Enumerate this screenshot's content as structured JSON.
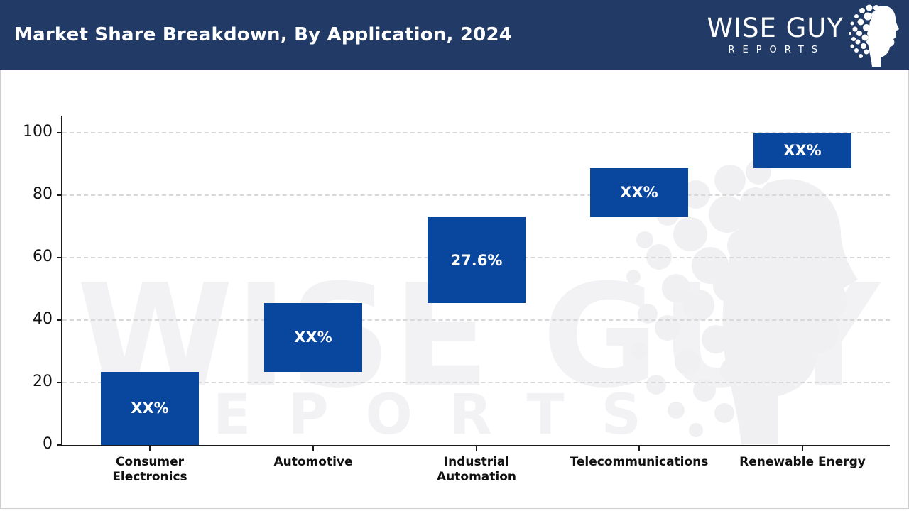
{
  "header": {
    "title": "Market Share Breakdown, By Application, 2024",
    "logo": {
      "line1": "WISE GUY",
      "line2": "REPORTS"
    }
  },
  "watermark": {
    "line1": "WISE GUY",
    "line2": "REPORTS"
  },
  "colors": {
    "header_bg": "#213a66",
    "bar": "#09479e",
    "grid": "#d8d8d8",
    "axis": "#1a1a1a",
    "watermark": "#f2f2f4",
    "bar_label": "#ffffff"
  },
  "chart_data": {
    "type": "bar",
    "subtype": "floating-waterfall",
    "title": "Market Share Breakdown, By Application, 2024",
    "categories": [
      "Consumer Electronics",
      "Automotive",
      "Industrial Automation",
      "Telecommunications",
      "Renewable Energy"
    ],
    "tick_lines": [
      "Consumer\nElectronics",
      "Automotive",
      "Industrial\nAutomation",
      "Telecommunications",
      "Renewable Energy"
    ],
    "segments": [
      {
        "category": "Consumer Electronics",
        "start": 0,
        "end": 23.5,
        "value": 23.5,
        "label": "XX%"
      },
      {
        "category": "Automotive",
        "start": 23.5,
        "end": 45.4,
        "value": 21.9,
        "label": "XX%"
      },
      {
        "category": "Industrial Automation",
        "start": 45.4,
        "end": 73.0,
        "value": 27.6,
        "label": "27.6%"
      },
      {
        "category": "Telecommunications",
        "start": 73.0,
        "end": 88.6,
        "value": 15.6,
        "label": "XX%"
      },
      {
        "category": "Renewable Energy",
        "start": 88.6,
        "end": 100.0,
        "value": 11.4,
        "label": "XX%"
      }
    ],
    "xlabel": "",
    "ylabel": "",
    "ylim": [
      0,
      100
    ],
    "yticks": [
      0,
      20,
      40,
      60,
      80,
      100
    ],
    "grid": "horizontal-dashed",
    "legend": "none",
    "bar_color": "#09479e",
    "label_color": "#ffffff"
  }
}
